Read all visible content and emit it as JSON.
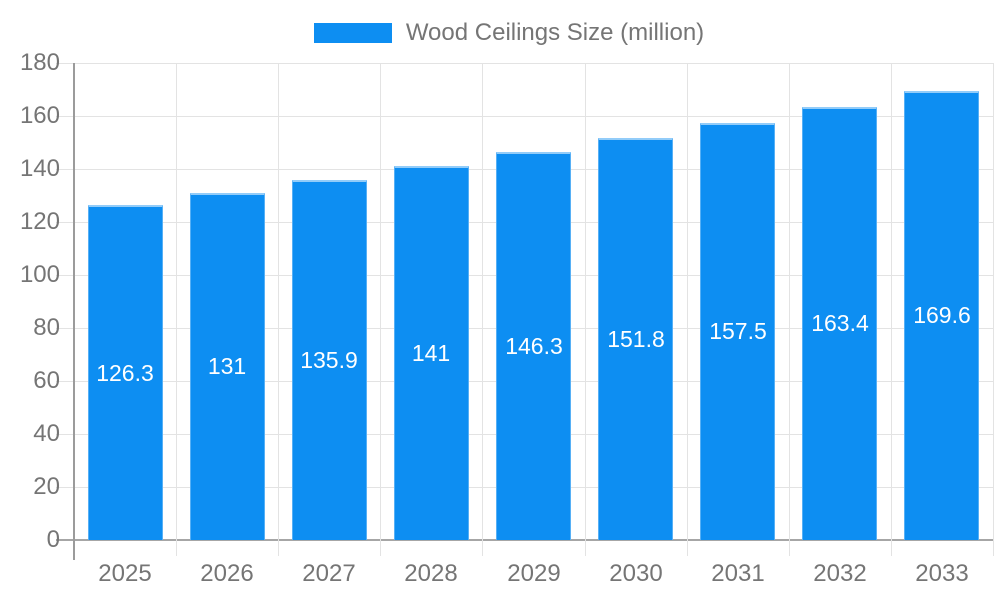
{
  "chart_data": {
    "type": "bar",
    "title": "",
    "legend": {
      "label": "Wood Ceilings Size (million)",
      "position": "top"
    },
    "categories": [
      "2025",
      "2026",
      "2027",
      "2028",
      "2029",
      "2030",
      "2031",
      "2032",
      "2033"
    ],
    "series": [
      {
        "name": "Wood Ceilings Size (million)",
        "values": [
          126.3,
          131,
          135.9,
          141,
          146.3,
          151.8,
          157.5,
          163.4,
          169.6
        ],
        "value_labels": [
          "126.3",
          "131",
          "135.9",
          "141",
          "146.3",
          "151.8",
          "157.5",
          "163.4",
          "169.6"
        ]
      }
    ],
    "xlabel": "",
    "ylabel": "",
    "ylim": [
      0,
      180
    ],
    "ytick_step": 20,
    "ytick_labels": [
      "0",
      "20",
      "40",
      "60",
      "80",
      "100",
      "120",
      "140",
      "160",
      "180"
    ],
    "grid": true,
    "value_label_position": "inside-center",
    "colors": {
      "bar": "#0d8ef2",
      "bar_border": "rgba(255,255,255,0.55)",
      "value_text": "#ffffff",
      "axis_text": "#757575",
      "gridline": "#e3e3e3",
      "axis_line": "#9b9b9b",
      "baseline": "#a6a6a6",
      "background": "#ffffff"
    }
  }
}
